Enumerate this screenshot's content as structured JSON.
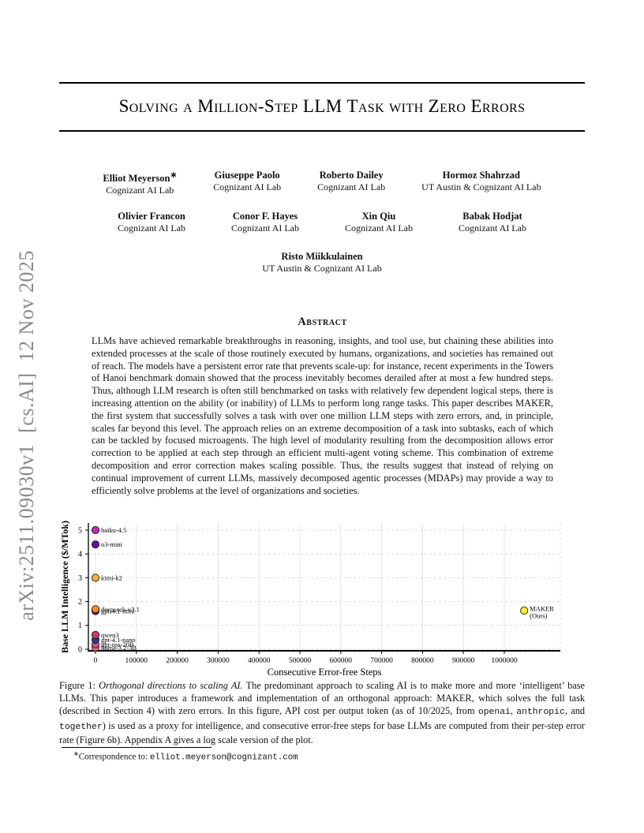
{
  "arxiv_watermark": "arXiv:2511.09030v1  [cs.AI]  12 Nov 2025",
  "title": "Solving a Million-Step LLM Task with Zero Errors",
  "authors": [
    {
      "name": "Elliot Meyerson",
      "mark": "∗",
      "affiliation": "Cognizant AI Lab"
    },
    {
      "name": "Giuseppe Paolo",
      "mark": "",
      "affiliation": "Cognizant AI Lab"
    },
    {
      "name": "Roberto Dailey",
      "mark": "",
      "affiliation": "Cognizant AI Lab"
    },
    {
      "name": "Hormoz Shahrzad",
      "mark": "",
      "affiliation": "UT Austin & Cognizant AI Lab"
    },
    {
      "name": "Olivier Francon",
      "mark": "",
      "affiliation": "Cognizant AI Lab"
    },
    {
      "name": "Conor F. Hayes",
      "mark": "",
      "affiliation": "Cognizant AI Lab"
    },
    {
      "name": "Xin Qiu",
      "mark": "",
      "affiliation": "Cognizant AI Lab"
    },
    {
      "name": "Babak Hodjat",
      "mark": "",
      "affiliation": "Cognizant AI Lab"
    },
    {
      "name": "Risto Miikkulainen",
      "mark": "",
      "affiliation": "UT Austin & Cognizant AI Lab"
    }
  ],
  "abstract": {
    "heading": "Abstract",
    "text": "LLMs have achieved remarkable breakthroughs in reasoning, insights, and tool use, but chaining these abilities into extended processes at the scale of those routinely executed by humans, organizations, and societies has remained out of reach. The models have a persistent error rate that prevents scale-up: for instance, recent experiments in the Towers of Hanoi benchmark domain showed that the process inevitably becomes derailed after at most a few hundred steps. Thus, although LLM research is often still benchmarked on tasks with relatively few dependent logical steps, there is increasing attention on the ability (or inability) of LLMs to perform long range tasks. This paper describes MAKER, the first system that successfully solves a task with over one million LLM steps with zero errors, and, in principle, scales far beyond this level. The approach relies on an extreme decomposition of a task into subtasks, each of which can be tackled by focused microagents. The high level of modularity resulting from the decomposition allows error correction to be applied at each step through an efficient multi-agent voting scheme. This combination of extreme decomposition and error correction makes scaling possible. Thus, the results suggest that instead of relying on continual improvement of current LLMs, massively decomposed agentic processes (MDAPs) may provide a way to efficiently solve problems at the level of organizations and societies."
  },
  "chart_data": {
    "type": "scatter",
    "xlabel": "Consecutive Error-free Steps",
    "ylabel": "Base LLM Intelligence ($/MTok)",
    "xlim": [
      -20000,
      1140000
    ],
    "ylim": [
      0,
      5.3
    ],
    "x_ticks": [
      0,
      100000,
      200000,
      300000,
      400000,
      500000,
      600000,
      700000,
      800000,
      900000,
      1000000
    ],
    "y_ticks": [
      0,
      1,
      2,
      3,
      4,
      5
    ],
    "grid": true,
    "points": [
      {
        "label": "haiku-4.5",
        "x": 0,
        "y": 5.0,
        "color": "#bf2bb2"
      },
      {
        "label": "o3-mini",
        "x": 0,
        "y": 4.4,
        "color": "#6a0d9e"
      },
      {
        "label": "kimi-k2",
        "x": 0,
        "y": 3.0,
        "color": "#f2b33d"
      },
      {
        "label": "deepseek-v3.1",
        "x": 0,
        "y": 1.68,
        "color": "#f58a2e"
      },
      {
        "label": "gpt-4.1-mini",
        "x": 0,
        "y": 1.6,
        "color": "#41258b"
      },
      {
        "label": "qwen3",
        "x": 0,
        "y": 0.6,
        "color": "#d6366b"
      },
      {
        "label": "gpt-4.1-nano",
        "x": 0,
        "y": 0.4,
        "color": "#2d3a8c"
      },
      {
        "label": "gpt-oss-20B",
        "x": 0,
        "y": 0.2,
        "color": "#d1499c"
      },
      {
        "label": "llama-3.2-3B",
        "x": 0,
        "y": 0.07,
        "color": "#ef7660"
      },
      {
        "label": "MAKER",
        "label2": "(Ours)",
        "x": 1048575,
        "y": 1.62,
        "color": "#f5ee3a"
      }
    ]
  },
  "caption": {
    "segments": [
      {
        "text": "Figure 1:  ",
        "style": "normal"
      },
      {
        "text": "Orthogonal directions to scaling AI.",
        "style": "italic"
      },
      {
        "text": " The predominant approach to scaling AI is to make more and more ‘intelligent’ base LLMs. This paper introduces a framework and implementation of an orthogonal approach: MAKER, which solves the full task (described in Section 4) with zero errors.  In this figure, API cost per output token (as of 10/2025, from ",
        "style": "normal"
      },
      {
        "text": "openai",
        "style": "mono"
      },
      {
        "text": ", ",
        "style": "normal"
      },
      {
        "text": "anthropic",
        "style": "mono"
      },
      {
        "text": ", and ",
        "style": "normal"
      },
      {
        "text": "together",
        "style": "mono"
      },
      {
        "text": ") is used as a proxy for intelligence, and consecutive error-free steps for base LLMs are computed from their per-step error rate (Figure 6b). Appendix A gives a log scale version of the plot.",
        "style": "normal"
      }
    ]
  },
  "footnote": {
    "marker": "∗",
    "text": "Correspondence to: ",
    "email": "elliot.meyerson@cognizant.com"
  }
}
